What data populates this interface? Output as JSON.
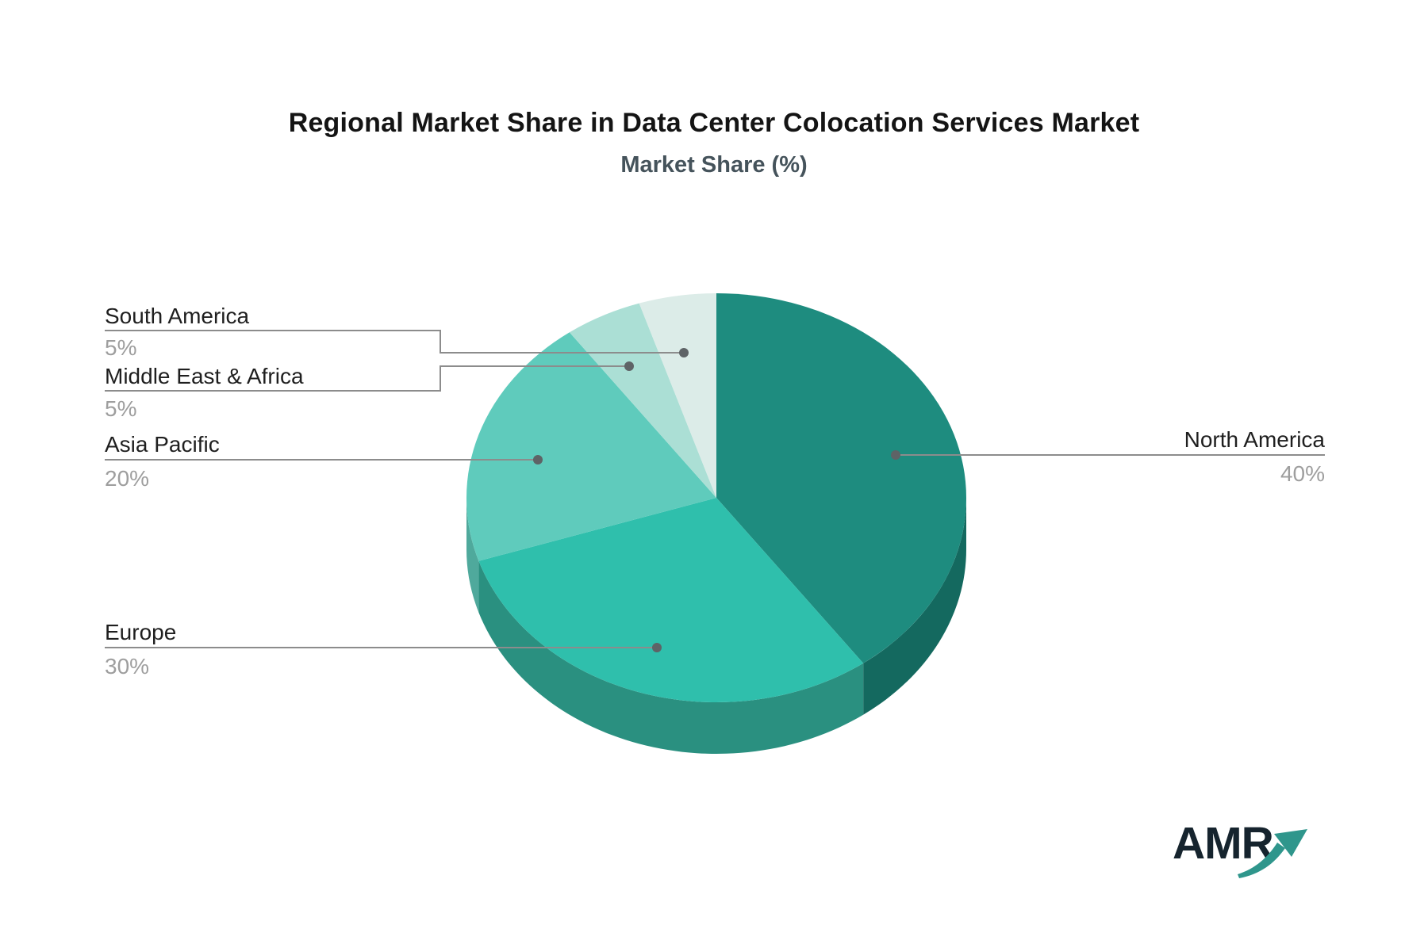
{
  "chart_data": {
    "type": "pie",
    "title": "Regional Market Share in Data Center Colocation Services Market",
    "subtitle": "Market Share (%)",
    "unit": "%",
    "style": "3d",
    "direction": "clockwise",
    "start_angle_deg": 0,
    "legend": "none",
    "categories": [
      "North America",
      "Europe",
      "Asia Pacific",
      "Middle East & Africa",
      "South America"
    ],
    "values": [
      40,
      30,
      20,
      5,
      5
    ],
    "colors": [
      "#1E8C7F",
      "#2FBFAC",
      "#5FCBBC",
      "#ABDFD5",
      "#DCECE8"
    ],
    "side_colors": [
      "#14695F",
      "#2A9080",
      "#4FA99C",
      "#8FC9BF",
      "#C2DCD6"
    ]
  },
  "labels": [
    {
      "name": "South America",
      "value_text": "5%"
    },
    {
      "name": "Middle East & Africa",
      "value_text": "5%"
    },
    {
      "name": "Asia Pacific",
      "value_text": "20%"
    },
    {
      "name": "Europe",
      "value_text": "30%"
    },
    {
      "name": "North America",
      "value_text": "40%"
    }
  ],
  "logo": {
    "text": "AMR"
  },
  "colors": {
    "background": "#FFFFFF",
    "title": "#141414",
    "subtitle": "#45535B",
    "label_text": "#1F1F1F",
    "value_text": "#9E9E9E",
    "leader_line": "#8C8C8C",
    "leader_dot": "#5E6366",
    "logo_text": "#16242E",
    "logo_arrow": "#2F968C"
  }
}
